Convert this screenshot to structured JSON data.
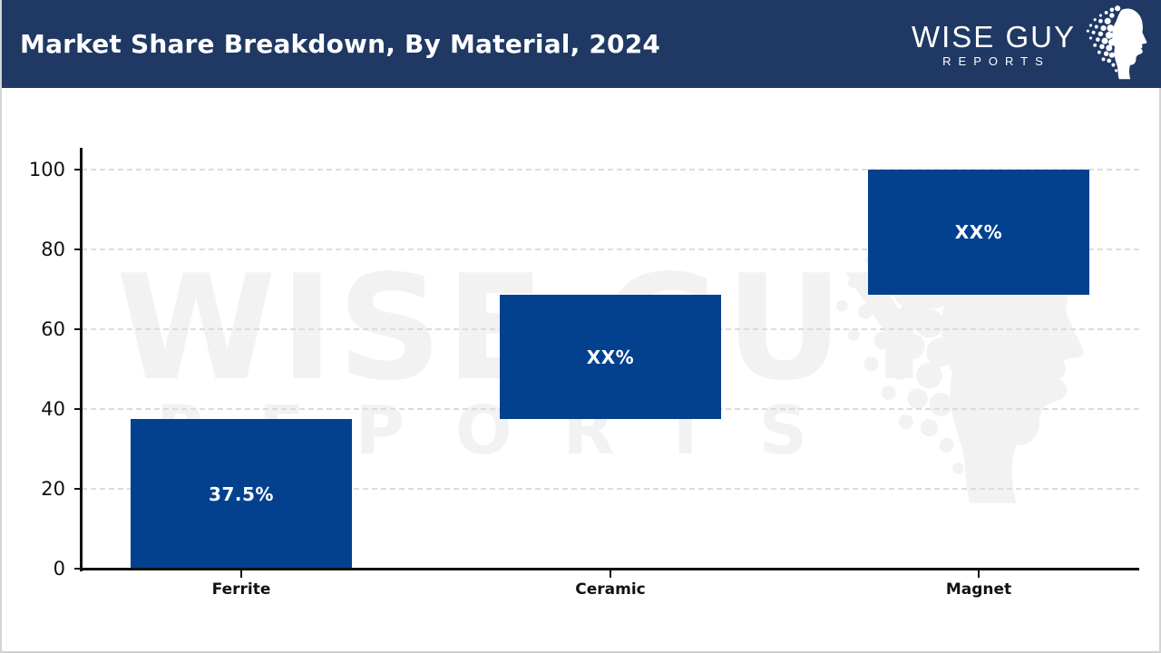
{
  "header": {
    "title": "Market Share Breakdown, By Material, 2024",
    "logo": {
      "line1": "WISE GUY",
      "line2": "REPORTS",
      "face_icon": "dotted-head-profile"
    },
    "colors": {
      "background": "#1f3864",
      "text": "#ffffff"
    }
  },
  "watermark": {
    "line1": "WISE GUY",
    "line2": "REPORTS",
    "color": "#f2f2f2"
  },
  "chart_data": {
    "type": "bar",
    "variant": "floating-waterfall",
    "title": "Market Share Breakdown, By Material, 2024",
    "categories": [
      "Ferrite",
      "Ceramic",
      "Magnet"
    ],
    "segments": [
      {
        "category": "Ferrite",
        "from": 0,
        "to": 37.5,
        "label": "37.5%"
      },
      {
        "category": "Ceramic",
        "from": 37.5,
        "to": 68.6,
        "label": "XX%"
      },
      {
        "category": "Magnet",
        "from": 68.6,
        "to": 100,
        "label": "XX%"
      }
    ],
    "yticks": [
      0,
      20,
      40,
      60,
      80,
      100
    ],
    "ylim": [
      0,
      106
    ],
    "xlabel": "",
    "ylabel": "",
    "grid": {
      "horizontal": true,
      "style": "dashed",
      "color": "#dcdcdc"
    },
    "legend": null,
    "colors": {
      "bar": "#03418f",
      "bar_label_text": "#ffffff",
      "axis": "#111111",
      "tick_label_text": "#111111"
    }
  }
}
